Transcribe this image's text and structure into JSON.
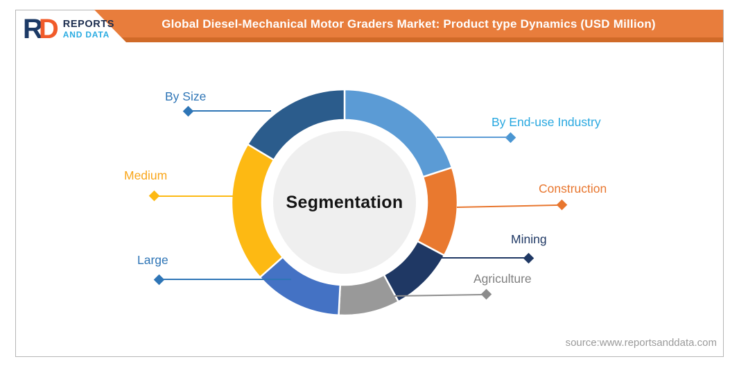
{
  "header": {
    "title": "Global Diesel-Mechanical Motor Graders Market: Product type Dynamics (USD Million)",
    "banner_color": "#E87D3C",
    "banner_shadow_color": "#D06A28",
    "text_color": "#FFFFFF"
  },
  "logo": {
    "letter_r": "R",
    "letter_d": "D",
    "line1": "REPORTS",
    "line2": "AND DATA",
    "navy": "#1B2C4E",
    "orange": "#F15B2A",
    "cyan": "#29ABE2"
  },
  "chart_data": {
    "type": "pie",
    "subtype": "donut-segmentation-infographic",
    "title": "Segmentation",
    "center_label": "Segmentation",
    "center_fill": "#EFEFEF",
    "gap_color": "#FFFFFF",
    "legend_position": "callouts-around-donut",
    "segments": [
      {
        "label": "By End-use Industry",
        "color": "#5B9BD5",
        "start_deg": 0,
        "end_deg": 72,
        "angle_deg": 72
      },
      {
        "label": "Construction",
        "color": "#E9792F",
        "start_deg": 72,
        "end_deg": 118,
        "angle_deg": 46
      },
      {
        "label": "Mining",
        "color": "#1F3864",
        "start_deg": 118,
        "end_deg": 151.5,
        "angle_deg": 33.5
      },
      {
        "label": "Agriculture",
        "color": "#999999",
        "start_deg": 151.5,
        "end_deg": 183,
        "angle_deg": 31.5
      },
      {
        "label": "Large",
        "color": "#4472C4",
        "start_deg": 183,
        "end_deg": 228.5,
        "angle_deg": 45.5
      },
      {
        "label": "Medium",
        "color": "#FDB913",
        "start_deg": 228.5,
        "end_deg": 301,
        "angle_deg": 72.5
      },
      {
        "label": "By Size",
        "color": "#2B5C8C",
        "start_deg": 301,
        "end_deg": 360,
        "angle_deg": 59
      }
    ]
  },
  "callouts": {
    "by_size": {
      "label": "By Size",
      "color": "#2E75B6",
      "marker_color": "#2E75B6",
      "line_color": "#2E75B6"
    },
    "medium": {
      "label": "Medium",
      "color": "#F9A61A",
      "marker_color": "#FDB913",
      "line_color": "#FDB913"
    },
    "large": {
      "label": "Large",
      "color": "#2E75B6",
      "marker_color": "#2E75B6",
      "line_color": "#2E75B6"
    },
    "end_use": {
      "label": "By End-use Industry",
      "color": "#29A8E0",
      "marker_color": "#4A96D2",
      "line_color": "#5B9BD5"
    },
    "construction": {
      "label": "Construction",
      "color": "#E8762E",
      "marker_color": "#E8762E",
      "line_color": "#E8762E"
    },
    "mining": {
      "label": "Mining",
      "color": "#1F3864",
      "marker_color": "#1F3864",
      "line_color": "#1F3864"
    },
    "agriculture": {
      "label": "Agriculture",
      "color": "#7F7F7F",
      "marker_color": "#8C8C8C",
      "line_color": "#8C8C8C"
    }
  },
  "footer": {
    "source": "source:www.reportsanddata.com"
  }
}
